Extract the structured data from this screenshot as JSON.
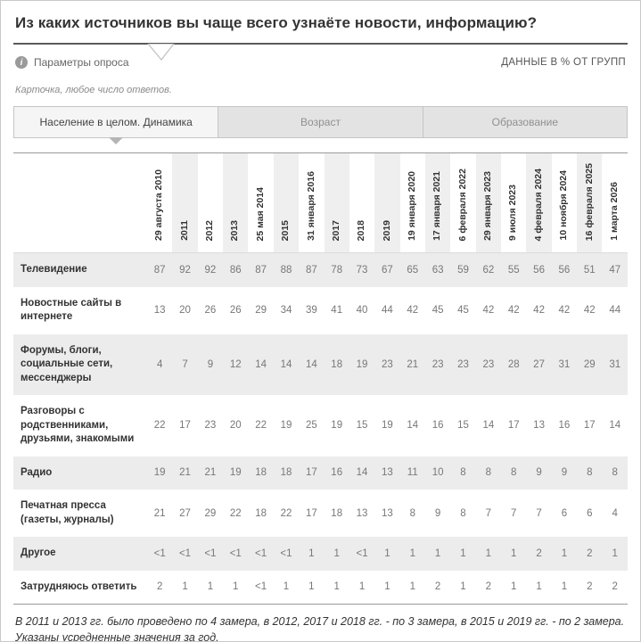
{
  "header": {
    "title": "Из каких источников вы чаще всего узнаёте новости, информацию?",
    "params_label": "Параметры опроса",
    "data_mode_label": "ДАННЫЕ В % ОТ ГРУПП"
  },
  "note": "Карточка, любое число ответов.",
  "tabs": [
    {
      "label": "Население в целом. Динамика",
      "active": true
    },
    {
      "label": "Возраст",
      "active": false
    },
    {
      "label": "Образование",
      "active": false
    }
  ],
  "chart_data": {
    "type": "table",
    "title": "Из каких источников вы чаще всего узнаёте новости, информацию?",
    "unit": "% от групп",
    "columns": [
      "29 августа 2010",
      "2011",
      "2012",
      "2013",
      "25 мая 2014",
      "2015",
      "31 января 2016",
      "2017",
      "2018",
      "2019",
      "19 января 2020",
      "17 января 2021",
      "6 февраля 2022",
      "29 января 2023",
      "9 июля 2023",
      "4 февраля 2024",
      "10 ноября 2024",
      "16 февраля 2025",
      "1 марта 2026"
    ],
    "rows": [
      {
        "label": "Телевидение",
        "values": [
          87,
          92,
          92,
          86,
          87,
          88,
          87,
          78,
          73,
          67,
          65,
          63,
          59,
          62,
          55,
          56,
          56,
          51,
          47
        ]
      },
      {
        "label": "Новостные сайты в интернете",
        "values": [
          13,
          20,
          26,
          26,
          29,
          34,
          39,
          41,
          40,
          44,
          42,
          45,
          45,
          42,
          42,
          42,
          42,
          42,
          44
        ]
      },
      {
        "label": "Форумы, блоги, социальные сети, мессенджеры",
        "values": [
          4,
          7,
          9,
          12,
          14,
          14,
          14,
          18,
          19,
          23,
          21,
          23,
          23,
          23,
          28,
          27,
          31,
          29,
          31
        ]
      },
      {
        "label": "Разговоры с родственниками, друзьями, знакомыми",
        "values": [
          22,
          17,
          23,
          20,
          22,
          19,
          25,
          19,
          15,
          19,
          14,
          16,
          15,
          14,
          17,
          13,
          16,
          17,
          14
        ]
      },
      {
        "label": "Радио",
        "values": [
          19,
          21,
          21,
          19,
          18,
          18,
          17,
          16,
          14,
          13,
          11,
          10,
          8,
          8,
          8,
          9,
          9,
          8,
          8
        ]
      },
      {
        "label": "Печатная пресса (газеты, журналы)",
        "values": [
          21,
          27,
          29,
          22,
          18,
          22,
          17,
          18,
          13,
          13,
          8,
          9,
          8,
          7,
          7,
          7,
          6,
          6,
          4
        ]
      },
      {
        "label": "Другое",
        "values": [
          "<1",
          "<1",
          "<1",
          "<1",
          "<1",
          "<1",
          1,
          1,
          "<1",
          1,
          1,
          1,
          1,
          1,
          1,
          2,
          1,
          2,
          1
        ]
      },
      {
        "label": "Затрудняюсь ответить",
        "values": [
          2,
          1,
          1,
          1,
          "<1",
          1,
          1,
          1,
          1,
          1,
          1,
          2,
          1,
          2,
          1,
          1,
          1,
          2,
          2
        ]
      }
    ]
  },
  "footnote": "В 2011 и 2013 гг. было проведено по 4 замера, в 2012, 2017 и 2018 гг. - по 3 замера, в 2015 и 2019 гг. - по 2 замера. Указаны усредненные значения за год."
}
